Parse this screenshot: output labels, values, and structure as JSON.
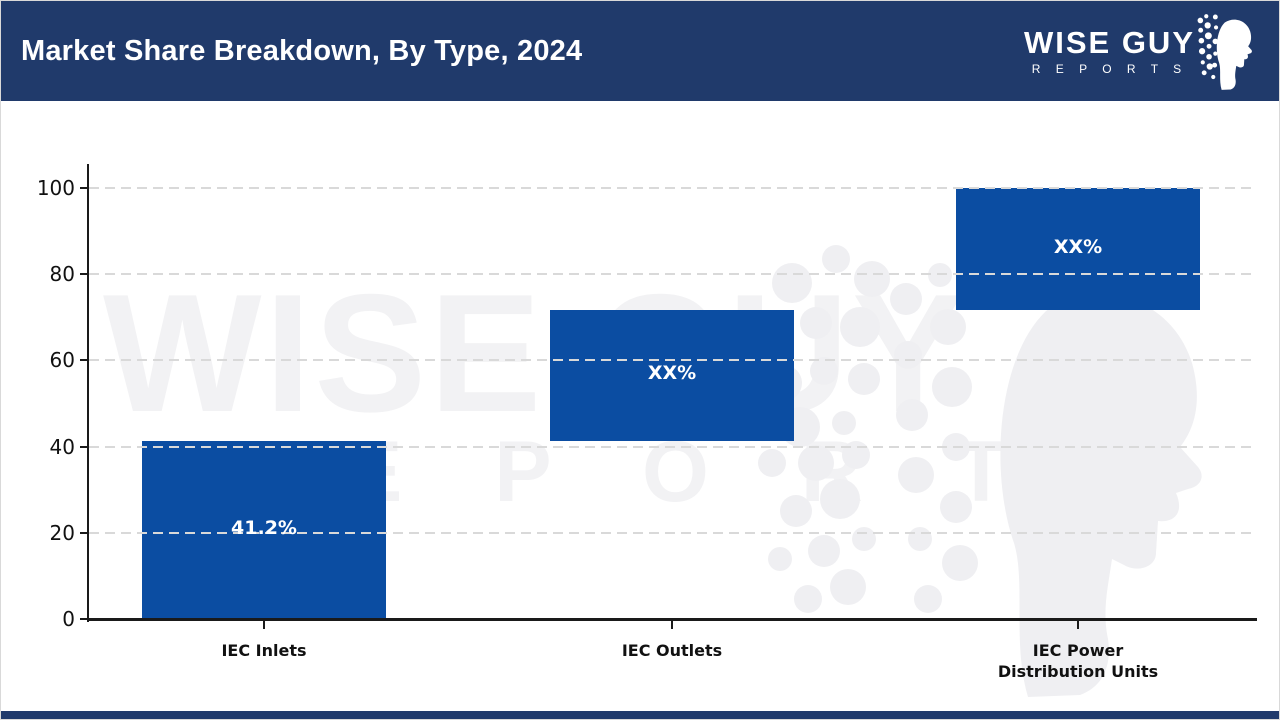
{
  "header": {
    "title": "Market Share Breakdown, By Type, 2024",
    "logo": {
      "wordmark": "WISE GUY",
      "tagline": "R E P O R T S"
    }
  },
  "watermark": {
    "wordmark": "WISE GUY",
    "tagline": "R E P O R T S"
  },
  "colors": {
    "header_bg": "#203a6b",
    "footer_bg": "#203a6b",
    "bar": "#0b4da2",
    "bar_label_text": "#ffffff",
    "gridline": "#d9d9d9",
    "axis": "#1a1a1a",
    "tick_text": "#111111",
    "watermark": "#f2f2f4"
  },
  "chart_data": {
    "type": "bar",
    "subtype": "waterfall",
    "title": "Market Share Breakdown, By Type, 2024",
    "categories": [
      "IEC Inlets",
      "IEC Outlets",
      "IEC Power\nDistribution Units"
    ],
    "values": [
      41.2,
      30.6,
      28.2
    ],
    "segment_start": [
      0,
      41.2,
      71.8
    ],
    "segment_end": [
      41.2,
      71.8,
      100
    ],
    "bar_labels": [
      "41.2%",
      "XX%",
      "XX%"
    ],
    "xlabel": "",
    "ylabel": "",
    "ylim": [
      0,
      100
    ],
    "yticks": [
      0,
      20,
      40,
      60,
      80,
      100
    ],
    "grid": "horizontal-dashed-over-bars",
    "legend": "none"
  }
}
